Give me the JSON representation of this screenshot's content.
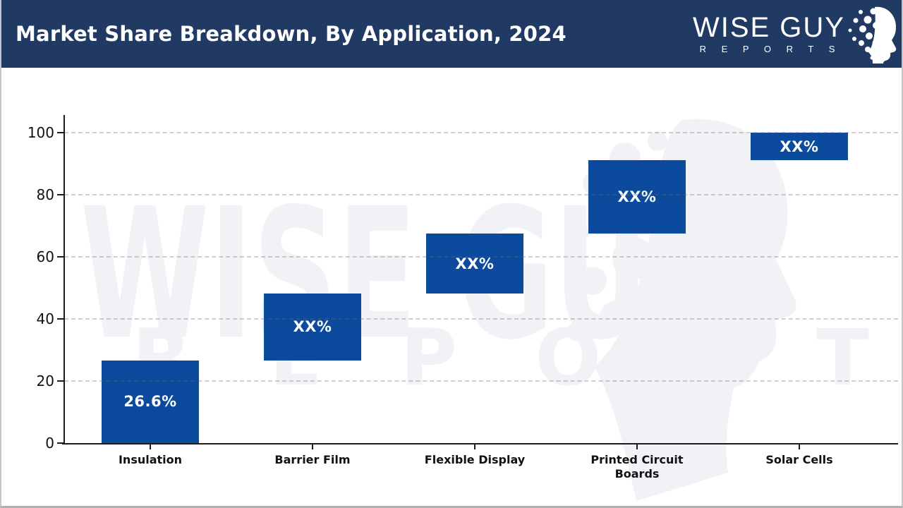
{
  "header": {
    "title": "Market Share Breakdown, By Application, 2024",
    "logo": {
      "wordmark": "WISE GUY",
      "subtext": "R E P O R T S"
    }
  },
  "watermark": {
    "line1": "WISE GUY",
    "line2": "R E P O R T S"
  },
  "chart_data": {
    "type": "bar",
    "subtype": "waterfall",
    "title": "Market Share Breakdown, By Application, 2024",
    "xlabel": "",
    "ylabel": "",
    "ylim": [
      0,
      105
    ],
    "yticks": [
      0,
      20,
      40,
      60,
      80,
      100
    ],
    "grid": "horizontal-dashed",
    "legend": false,
    "bar_color": "#0c4a9e",
    "value_label_color": "#ffffff",
    "categories": [
      "Insulation",
      "Barrier Film",
      "Flexible Display",
      "Printed Circuit Boards",
      "Solar Cells"
    ],
    "segments": [
      {
        "category": "Insulation",
        "start": 0,
        "end": 26.6,
        "label": "26.6%"
      },
      {
        "category": "Barrier Film",
        "start": 26.6,
        "end": 48.2,
        "label": "XX%"
      },
      {
        "category": "Flexible Display",
        "start": 48.2,
        "end": 67.4,
        "label": "XX%"
      },
      {
        "category": "Printed Circuit Boards",
        "start": 67.4,
        "end": 91.1,
        "label": "XX%"
      },
      {
        "category": "Solar Cells",
        "start": 91.1,
        "end": 100,
        "label": "XX%"
      }
    ]
  }
}
